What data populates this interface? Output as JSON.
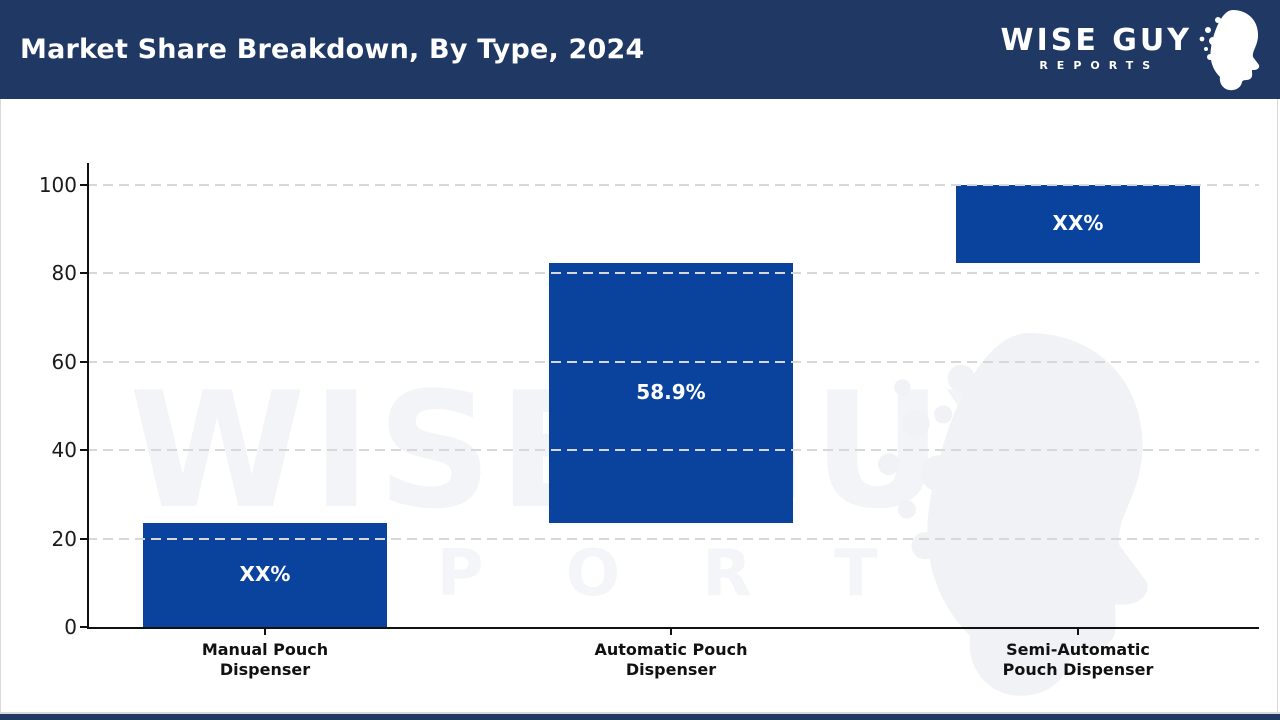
{
  "header": {
    "title": "Market Share Breakdown, By Type, 2024",
    "logo": {
      "line1": "WISE GUY",
      "line2": "REPORTS"
    }
  },
  "watermark": {
    "line1": "WISE GUY",
    "line2": "R E P O R T S"
  },
  "colors": {
    "header_bg": "#1F3864",
    "footer_bg": "#1F3864",
    "bar": "#09439E",
    "bar_label": "#FFFFFF",
    "gridline": "#D8D8D8",
    "axis": "#111111",
    "watermark": "#F3F4F7"
  },
  "chart_data": {
    "type": "bar",
    "subtype": "stacked-waterfall-percent",
    "title": "Market Share Breakdown, By Type, 2024",
    "categories": [
      {
        "line1": "Manual Pouch",
        "line2": "Dispenser"
      },
      {
        "line1": "Automatic Pouch",
        "line2": "Dispenser"
      },
      {
        "line1": "Semi-Automatic",
        "line2": "Pouch Dispenser"
      }
    ],
    "segments": [
      {
        "category": "Manual Pouch Dispenser",
        "start": 0,
        "end": 23.5,
        "label": "XX%"
      },
      {
        "category": "Automatic Pouch Dispenser",
        "start": 23.5,
        "end": 82.4,
        "label": "58.9%",
        "value": 58.9
      },
      {
        "category": "Semi-Automatic Pouch Dispenser",
        "start": 82.4,
        "end": 100,
        "label": "XX%"
      }
    ],
    "ylim": [
      0,
      100
    ],
    "yticks": [
      0,
      20,
      40,
      60,
      80,
      100
    ],
    "grid": "dashed-horizontal",
    "legend": "none"
  }
}
